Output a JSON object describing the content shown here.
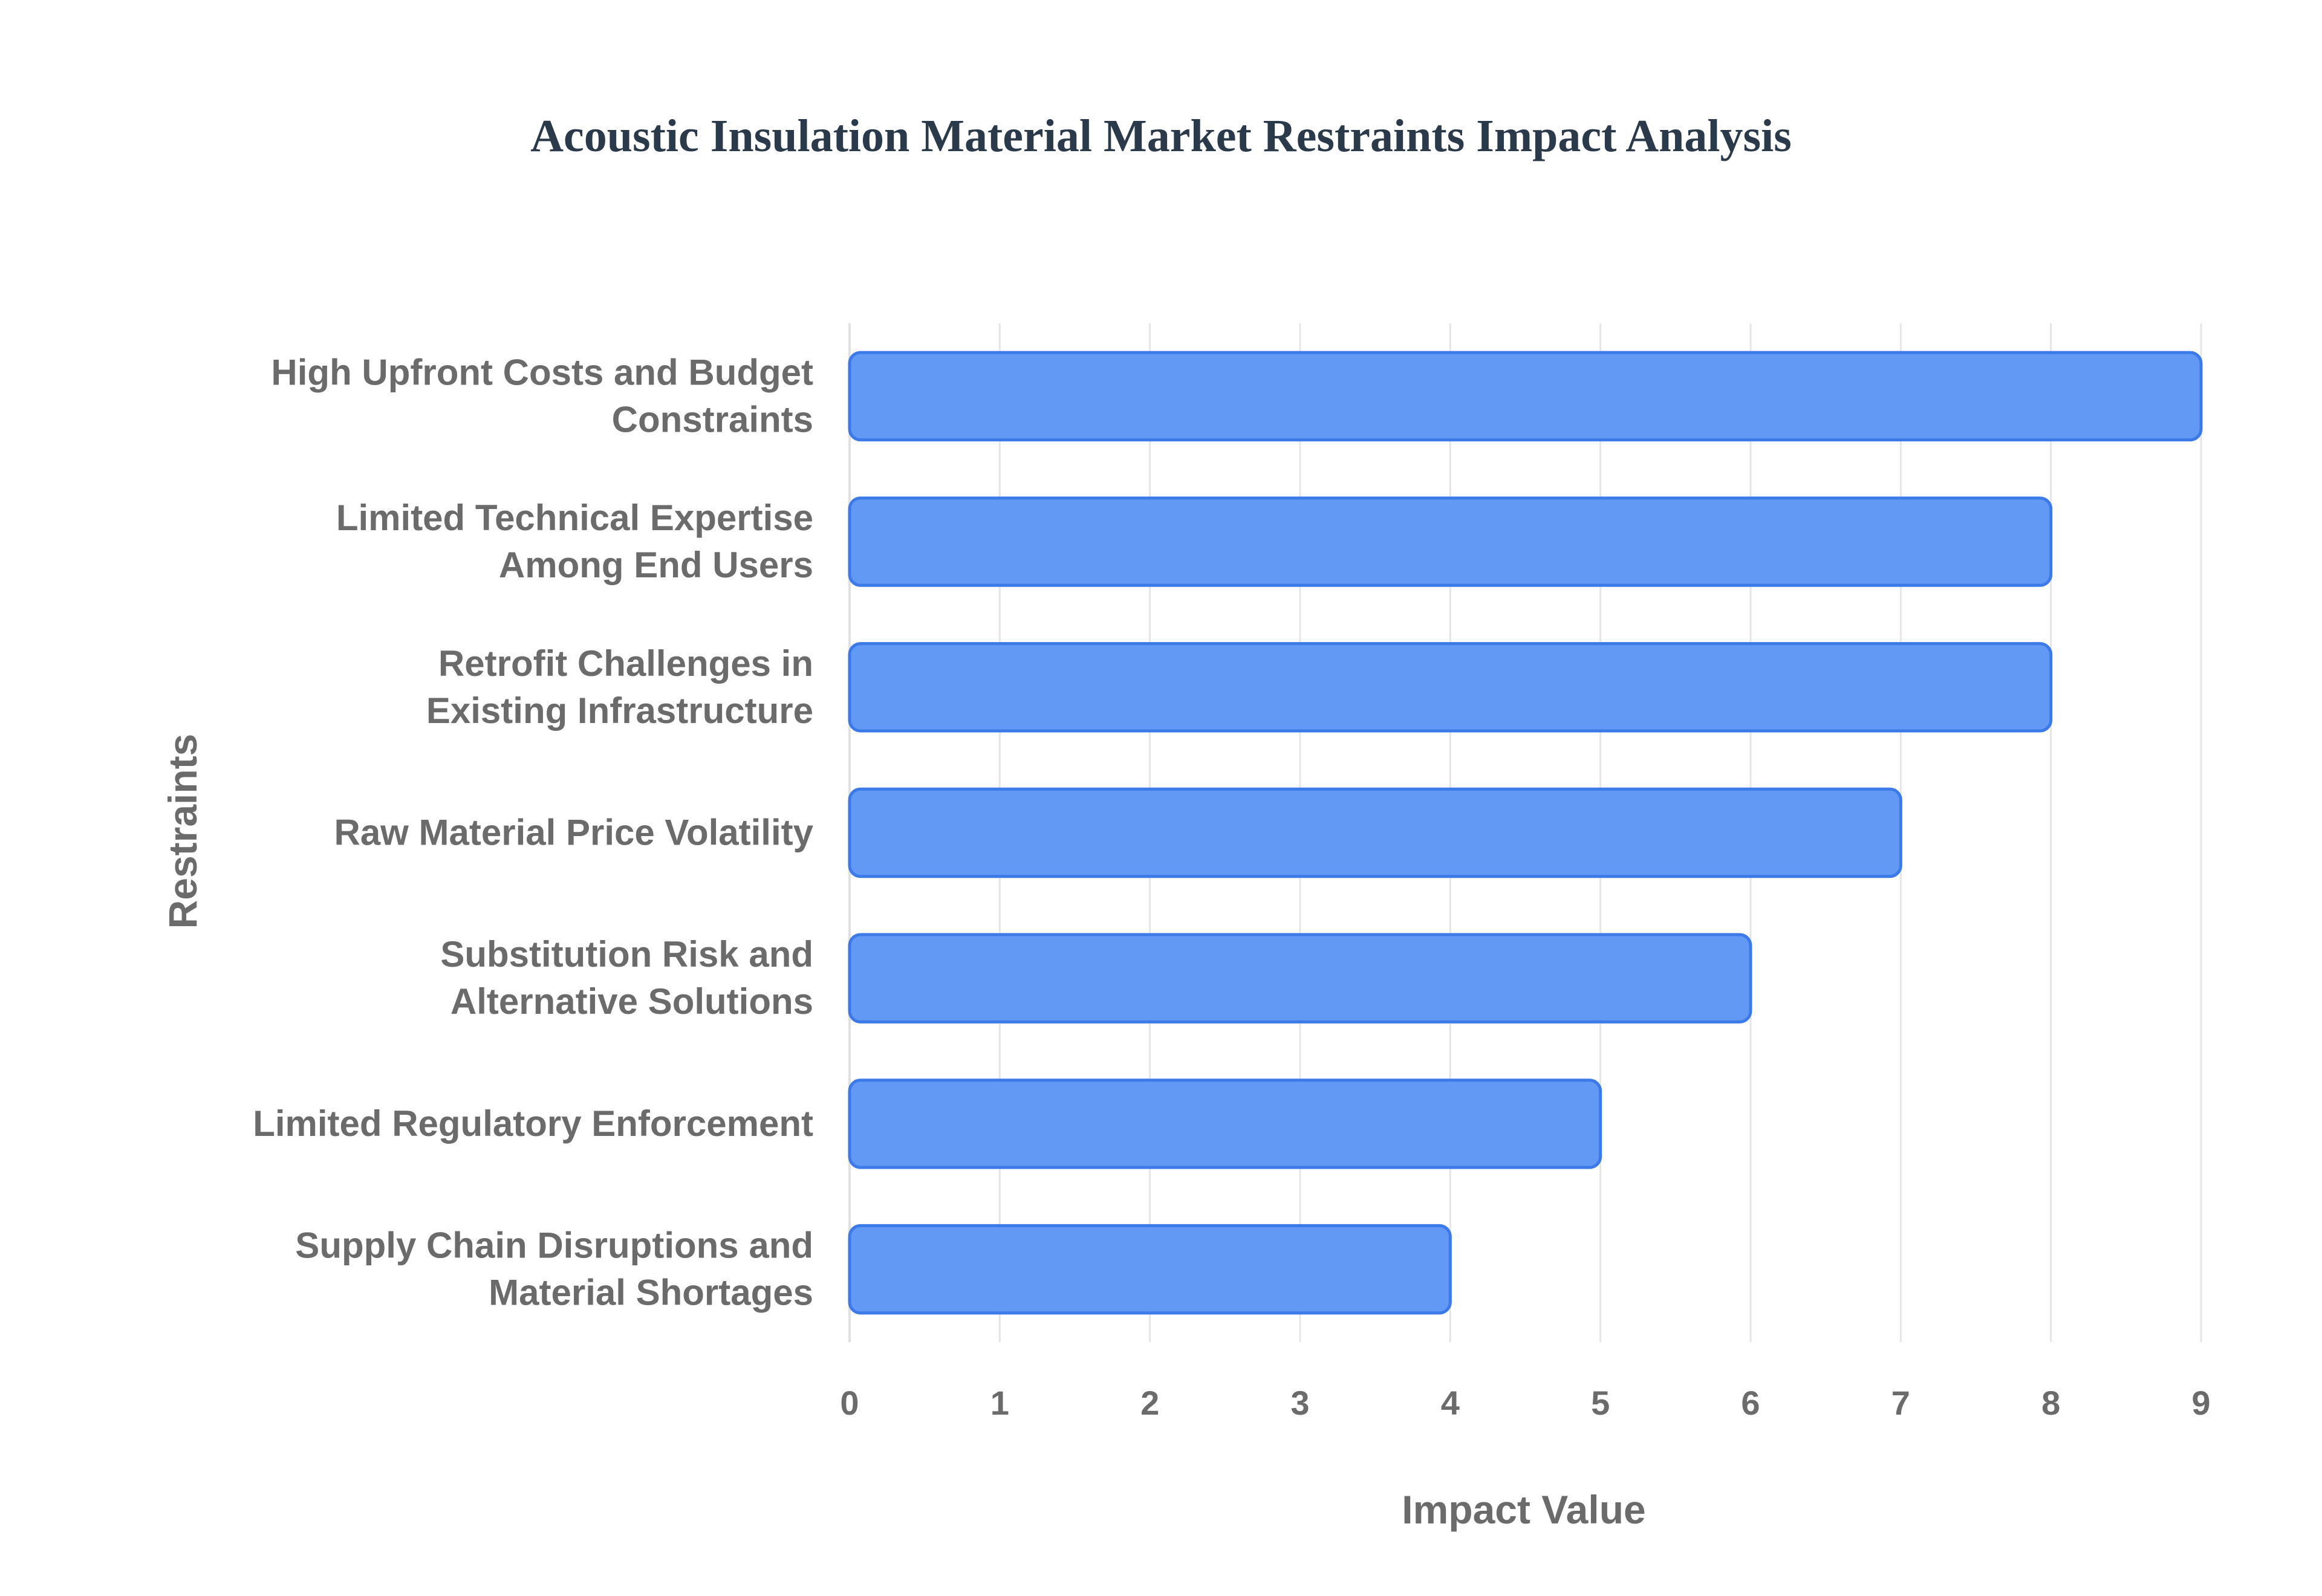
{
  "chart_data": {
    "type": "bar",
    "orientation": "horizontal",
    "title": "Acoustic Insulation Material Market Restraints Impact Analysis",
    "xlabel": "Impact Value",
    "ylabel": "Restraints",
    "xlim": [
      0,
      9
    ],
    "xticks": [
      0,
      1,
      2,
      3,
      4,
      5,
      6,
      7,
      8,
      9
    ],
    "grid": true,
    "categories": [
      [
        "High Upfront Costs and Budget",
        "Constraints"
      ],
      [
        "Limited Technical Expertise",
        "Among End Users"
      ],
      [
        "Retrofit Challenges in",
        "Existing Infrastructure"
      ],
      [
        "Raw Material Price Volatility"
      ],
      [
        "Substitution Risk and",
        "Alternative Solutions"
      ],
      [
        "Limited Regulatory Enforcement"
      ],
      [
        "Supply Chain Disruptions and",
        "Material Shortages"
      ]
    ],
    "values": [
      9,
      8,
      8,
      7,
      6,
      5,
      4
    ],
    "colors": {
      "bar_fill": "#6199f5",
      "bar_stroke": "#3b7ae8",
      "text": "#6b6b6b",
      "title": "#2b3a4a"
    }
  }
}
